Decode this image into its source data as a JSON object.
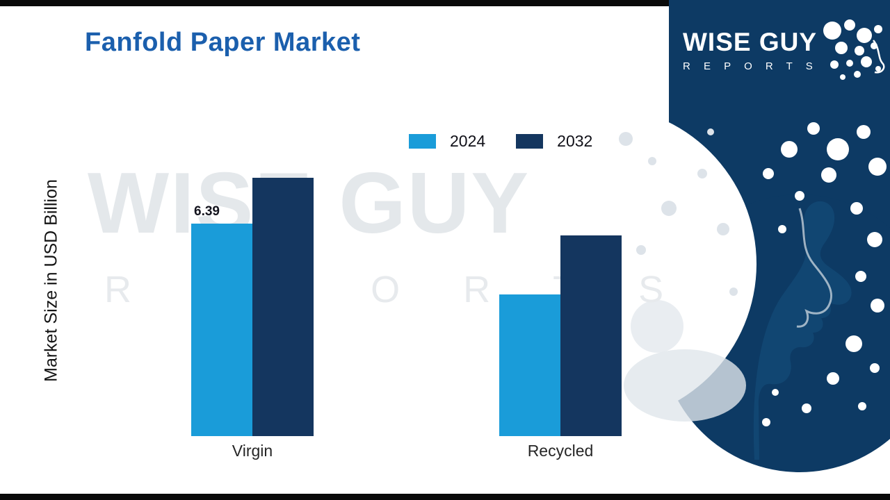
{
  "title": "Fanfold Paper Market",
  "logo": {
    "line1": "WISE GUY",
    "line2": "R E P O R T S"
  },
  "watermark": {
    "line1": "WISE GUY",
    "line2": "R E P O R T S"
  },
  "legend": [
    {
      "label": "2024",
      "color": "#1a9cd9"
    },
    {
      "label": "2032",
      "color": "#14365f"
    }
  ],
  "chart_data": {
    "type": "bar",
    "title": "Fanfold Paper Market",
    "ylabel": "Market Size in USD Billion",
    "categories": [
      "Virgin",
      "Recycled"
    ],
    "series": [
      {
        "name": "2024",
        "color": "#1a9cd9",
        "values": [
          6.39,
          4.25
        ]
      },
      {
        "name": "2032",
        "color": "#14365f",
        "values": [
          7.76,
          6.04
        ]
      }
    ],
    "bar_labels": [
      {
        "category": "Virgin",
        "series": "2024",
        "text": "6.39"
      }
    ],
    "ylim": [
      0,
      8.5
    ],
    "grid": false,
    "legend_position": "top-center"
  },
  "colors": {
    "title": "#1b5fad",
    "panel": "#0d3a64",
    "series_2024": "#1a9cd9",
    "series_2032": "#14365f",
    "watermark": "#e4e8eb",
    "strip": "#0a0a0a"
  }
}
